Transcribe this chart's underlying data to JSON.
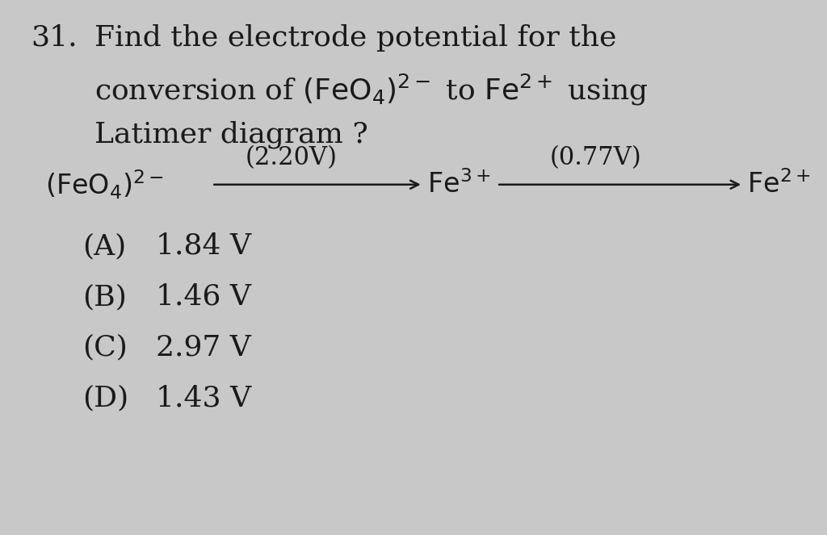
{
  "background_color": "#c8c8c8",
  "question_number": "31.",
  "question_line1": "Find the electrode potential for the",
  "question_line2_part1": "conversion of (FeO",
  "question_line2_part2": ")$^{2-}$ to Fe$^{2+}$ using",
  "question_line3": "Latimer diagram ?",
  "diagram": {
    "species1_text": "(FeO$_4$)$^{2-}$",
    "species2_text": "Fe$^{3+}$",
    "species3_text": "Fe$^{2+}$",
    "voltage1": "(2.20V)",
    "voltage2": "(0.77V)"
  },
  "question_line2_math": "conversion of $(\\mathrm{FeO_4})^{2-}$ to $\\mathrm{Fe^{2+}}$ using",
  "options": [
    {
      "label": "(A)",
      "value": "1.84 V"
    },
    {
      "label": "(B)",
      "value": "1.46 V"
    },
    {
      "label": "(C)",
      "value": "2.97 V"
    },
    {
      "label": "(D)",
      "value": "1.43 V"
    }
  ],
  "text_color": "#1a1a1a",
  "font_size_question": 26,
  "font_size_diagram": 24,
  "font_size_options": 26,
  "font_size_number": 26
}
